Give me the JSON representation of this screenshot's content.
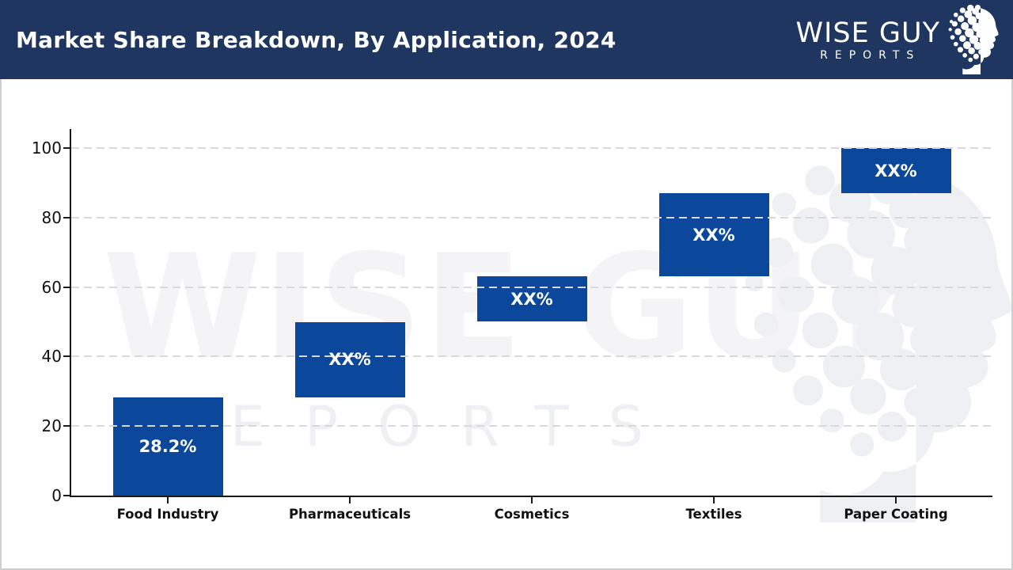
{
  "header": {
    "title": "Market Share Breakdown, By Application, 2024",
    "logo": {
      "line1": "WISE GUY",
      "line2": "REPORTS"
    }
  },
  "watermark": {
    "line1": "WISE GUY",
    "line2": "REPORTS"
  },
  "colors": {
    "header_bg": "#1f3660",
    "bar": "#0b489c",
    "bar_label": "#ffffff",
    "axis": "#1a1a1a",
    "gridline": "#d9d9d9",
    "tick_label": "#111111",
    "watermark": "#f4f4f6",
    "watermark2": "#eff0f3",
    "border": "#cfcfcf"
  },
  "chart_data": {
    "type": "bar",
    "subtype": "waterfall",
    "title": "Market Share Breakdown, By Application, 2024",
    "categories": [
      "Food Industry",
      "Pharmaceuticals",
      "Cosmetics",
      "Textiles",
      "Paper Coating"
    ],
    "bars": [
      {
        "category": "Food Industry",
        "start": 0,
        "end": 28.2,
        "label": "28.2%"
      },
      {
        "category": "Pharmaceuticals",
        "start": 28.2,
        "end": 50,
        "label": "XX%"
      },
      {
        "category": "Cosmetics",
        "start": 50,
        "end": 63,
        "label": "XX%"
      },
      {
        "category": "Textiles",
        "start": 63,
        "end": 87,
        "label": "XX%"
      },
      {
        "category": "Paper Coating",
        "start": 87,
        "end": 100,
        "label": "XX%"
      }
    ],
    "xlabel": "",
    "ylabel": "",
    "ylim": [
      0,
      100
    ],
    "yticks": [
      0,
      20,
      40,
      60,
      80,
      100
    ],
    "grid": "horizontal-dashed",
    "legend": "none",
    "bar_color": "#0b489c"
  }
}
